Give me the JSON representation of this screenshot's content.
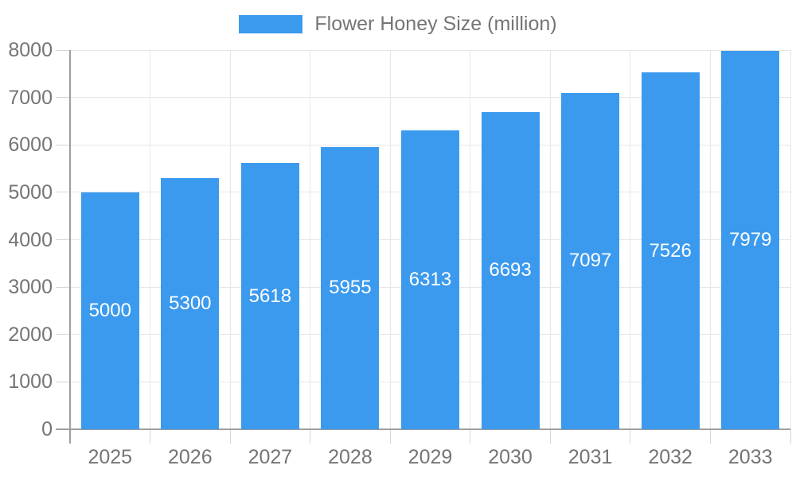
{
  "chart_data": {
    "type": "bar",
    "title": "",
    "xlabel": "",
    "ylabel": "",
    "categories": [
      "2025",
      "2026",
      "2027",
      "2028",
      "2029",
      "2030",
      "2031",
      "2032",
      "2033"
    ],
    "series": [
      {
        "name": "Flower Honey Size (million)",
        "color": "#3B9AEE",
        "values": [
          5000,
          5300,
          5618,
          5955,
          6313,
          6693,
          7097,
          7526,
          7979
        ]
      }
    ],
    "ylim": [
      0,
      8000
    ],
    "yticks": [
      0,
      1000,
      2000,
      3000,
      4000,
      5000,
      6000,
      7000,
      8000
    ],
    "grid": true,
    "legend_position": "top",
    "value_labels": "inside-center",
    "value_label_color": "#FFFFFF"
  },
  "colors": {
    "bar": "#3B9AEE",
    "axis_line": "#9E9E9E",
    "gridline": "#E7E7E7",
    "tick": "#D6D6D6",
    "label_text": "#757575",
    "value_label": "#FFFFFF",
    "background": "#FFFFFF"
  }
}
